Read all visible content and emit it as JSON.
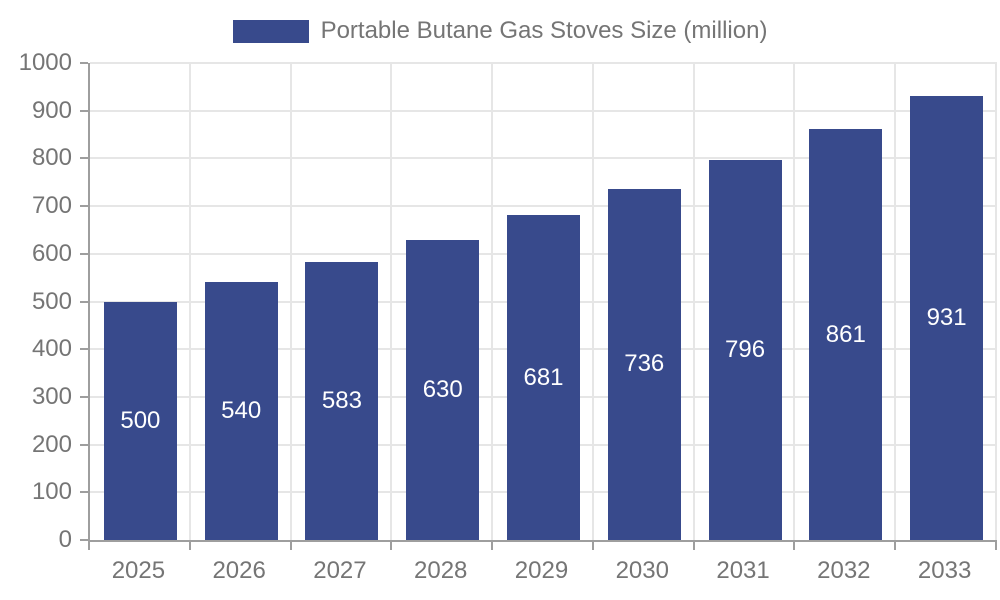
{
  "legend": {
    "label": "Portable Butane Gas Stoves Size (million)"
  },
  "chart_data": {
    "type": "bar",
    "title": "Portable Butane Gas Stoves Size (million)",
    "categories": [
      "2025",
      "2026",
      "2027",
      "2028",
      "2029",
      "2030",
      "2031",
      "2032",
      "2033"
    ],
    "values": [
      500,
      540,
      583,
      630,
      681,
      736,
      796,
      861,
      931
    ],
    "xlabel": "",
    "ylabel": "",
    "ylim": [
      0,
      1000
    ],
    "ytick_step": 100,
    "grid": true,
    "legend_position": "top",
    "colors": {
      "bar": "#384A8C",
      "value_label_text": "#ffffff",
      "axis_text": "#757575",
      "grid_line": "#e6e6e6",
      "axis_line": "#9e9e9e"
    }
  }
}
